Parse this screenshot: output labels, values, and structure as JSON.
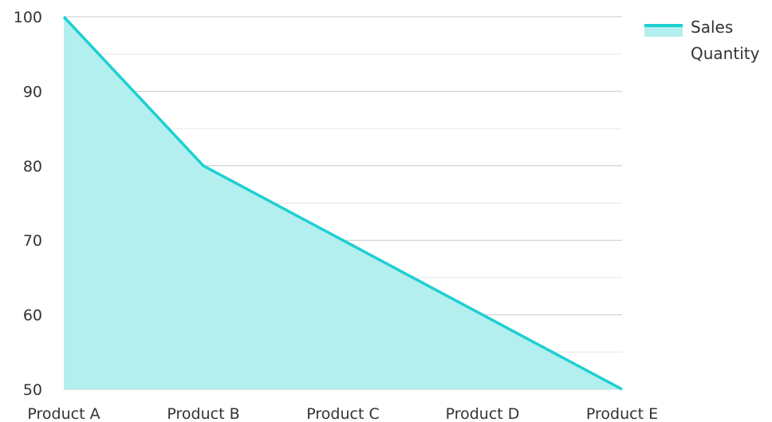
{
  "chart_data": {
    "type": "area",
    "categories": [
      "Product A",
      "Product B",
      "Product C",
      "Product D",
      "Product E"
    ],
    "series": [
      {
        "name": "Sales Quantity",
        "values": [
          100,
          80,
          70,
          60,
          50
        ]
      }
    ],
    "ylim": [
      50,
      100
    ],
    "yticks": [
      50,
      60,
      70,
      80,
      90,
      100
    ],
    "ytick_labels": [
      "50",
      "60",
      "70",
      "80",
      "90",
      "100"
    ],
    "minor_gridlines": true,
    "grid": true,
    "legend": {
      "position": "top-right",
      "labels": [
        "Sales",
        "Quantity"
      ]
    },
    "colors": {
      "line": "#1ECFD2",
      "fill": "#B2EFEE",
      "grid": "#C8C8C8",
      "minor_grid": "#E6E6E6"
    }
  }
}
